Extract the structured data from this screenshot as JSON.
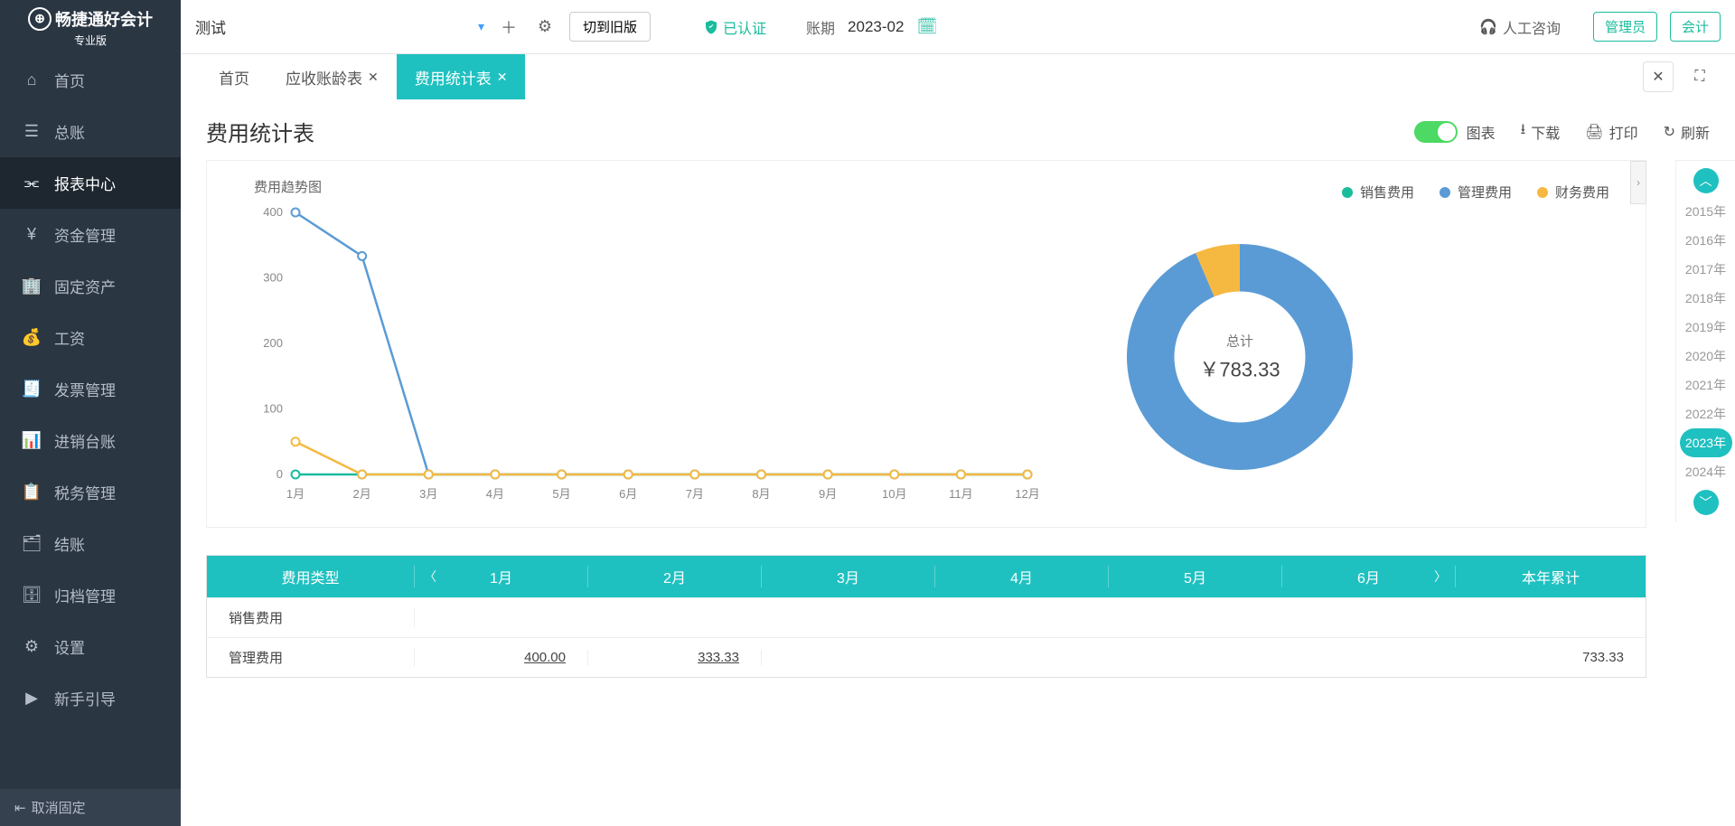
{
  "brand": {
    "name": "畅捷通好会计",
    "edition": "专业版"
  },
  "sidebar": {
    "items": [
      {
        "label": "首页",
        "icon": "⌂"
      },
      {
        "label": "总账",
        "icon": "☰"
      },
      {
        "label": "报表中心",
        "icon": "⫘",
        "active": true
      },
      {
        "label": "资金管理",
        "icon": "¥"
      },
      {
        "label": "固定资产",
        "icon": "🏢"
      },
      {
        "label": "工资",
        "icon": "💰"
      },
      {
        "label": "发票管理",
        "icon": "🧾"
      },
      {
        "label": "进销台账",
        "icon": "📊"
      },
      {
        "label": "税务管理",
        "icon": "📋"
      },
      {
        "label": "结账",
        "icon": "🗂"
      },
      {
        "label": "归档管理",
        "icon": "🗄"
      },
      {
        "label": "设置",
        "icon": "⚙"
      },
      {
        "label": "新手引导",
        "icon": "▶"
      }
    ],
    "footer": "取消固定"
  },
  "topbar": {
    "account": "测试",
    "switch_old": "切到旧版",
    "verified": "已认证",
    "period_label": "账期",
    "period_value": "2023-02",
    "consult": "人工咨询",
    "role1": "管理员",
    "role2": "会计"
  },
  "tabs": {
    "items": [
      {
        "label": "首页",
        "closable": false
      },
      {
        "label": "应收账龄表",
        "closable": true
      },
      {
        "label": "费用统计表",
        "closable": true,
        "active": true
      }
    ]
  },
  "page": {
    "title": "费用统计表",
    "toggle_label": "图表",
    "download": "下载",
    "print": "打印",
    "refresh": "刷新"
  },
  "years": {
    "list": [
      "2015年",
      "2016年",
      "2017年",
      "2018年",
      "2019年",
      "2020年",
      "2021年",
      "2022年",
      "2023年",
      "2024年"
    ],
    "active": "2023年"
  },
  "line_chart": {
    "title": "费用趋势图",
    "x_labels": [
      "1月",
      "2月",
      "3月",
      "4月",
      "5月",
      "6月",
      "7月",
      "8月",
      "9月",
      "10月",
      "11月",
      "12月"
    ],
    "y_ticks": [
      0,
      100,
      200,
      300,
      400
    ],
    "ylim": [
      0,
      400
    ],
    "series": [
      {
        "name": "销售费用",
        "color": "#1abc9c",
        "values": [
          0,
          0,
          0,
          0,
          0,
          0,
          0,
          0,
          0,
          0,
          0,
          0
        ]
      },
      {
        "name": "管理费用",
        "color": "#5b9bd5",
        "values": [
          400,
          333.33,
          0,
          0,
          0,
          0,
          0,
          0,
          0,
          0,
          0,
          0
        ]
      },
      {
        "name": "财务费用",
        "color": "#f5b942",
        "values": [
          50,
          0,
          0,
          0,
          0,
          0,
          0,
          0,
          0,
          0,
          0,
          0
        ]
      }
    ]
  },
  "donut": {
    "center_label": "总计",
    "center_value": "￥783.33",
    "slices": [
      {
        "name": "管理费用",
        "value": 733.33,
        "color": "#5b9bd5"
      },
      {
        "name": "财务费用",
        "value": 50,
        "color": "#f5b942"
      }
    ],
    "inner_ratio": 0.58
  },
  "legend": [
    {
      "name": "销售费用",
      "color": "#1abc9c"
    },
    {
      "name": "管理费用",
      "color": "#5b9bd5"
    },
    {
      "name": "财务费用",
      "color": "#f5b942"
    }
  ],
  "table": {
    "type_header": "费用类型",
    "month_headers": [
      "1月",
      "2月",
      "3月",
      "4月",
      "5月",
      "6月"
    ],
    "total_header": "本年累计",
    "rows": [
      {
        "type": "销售费用",
        "cells": [
          "",
          "",
          "",
          "",
          "",
          ""
        ],
        "total": ""
      },
      {
        "type": "管理费用",
        "cells": [
          "400.00",
          "333.33",
          "",
          "",
          "",
          ""
        ],
        "total": "733.33"
      }
    ]
  },
  "colors": {
    "sidebar_bg": "#2b3643",
    "accent": "#1fc0c0",
    "green": "#1abc9c"
  }
}
